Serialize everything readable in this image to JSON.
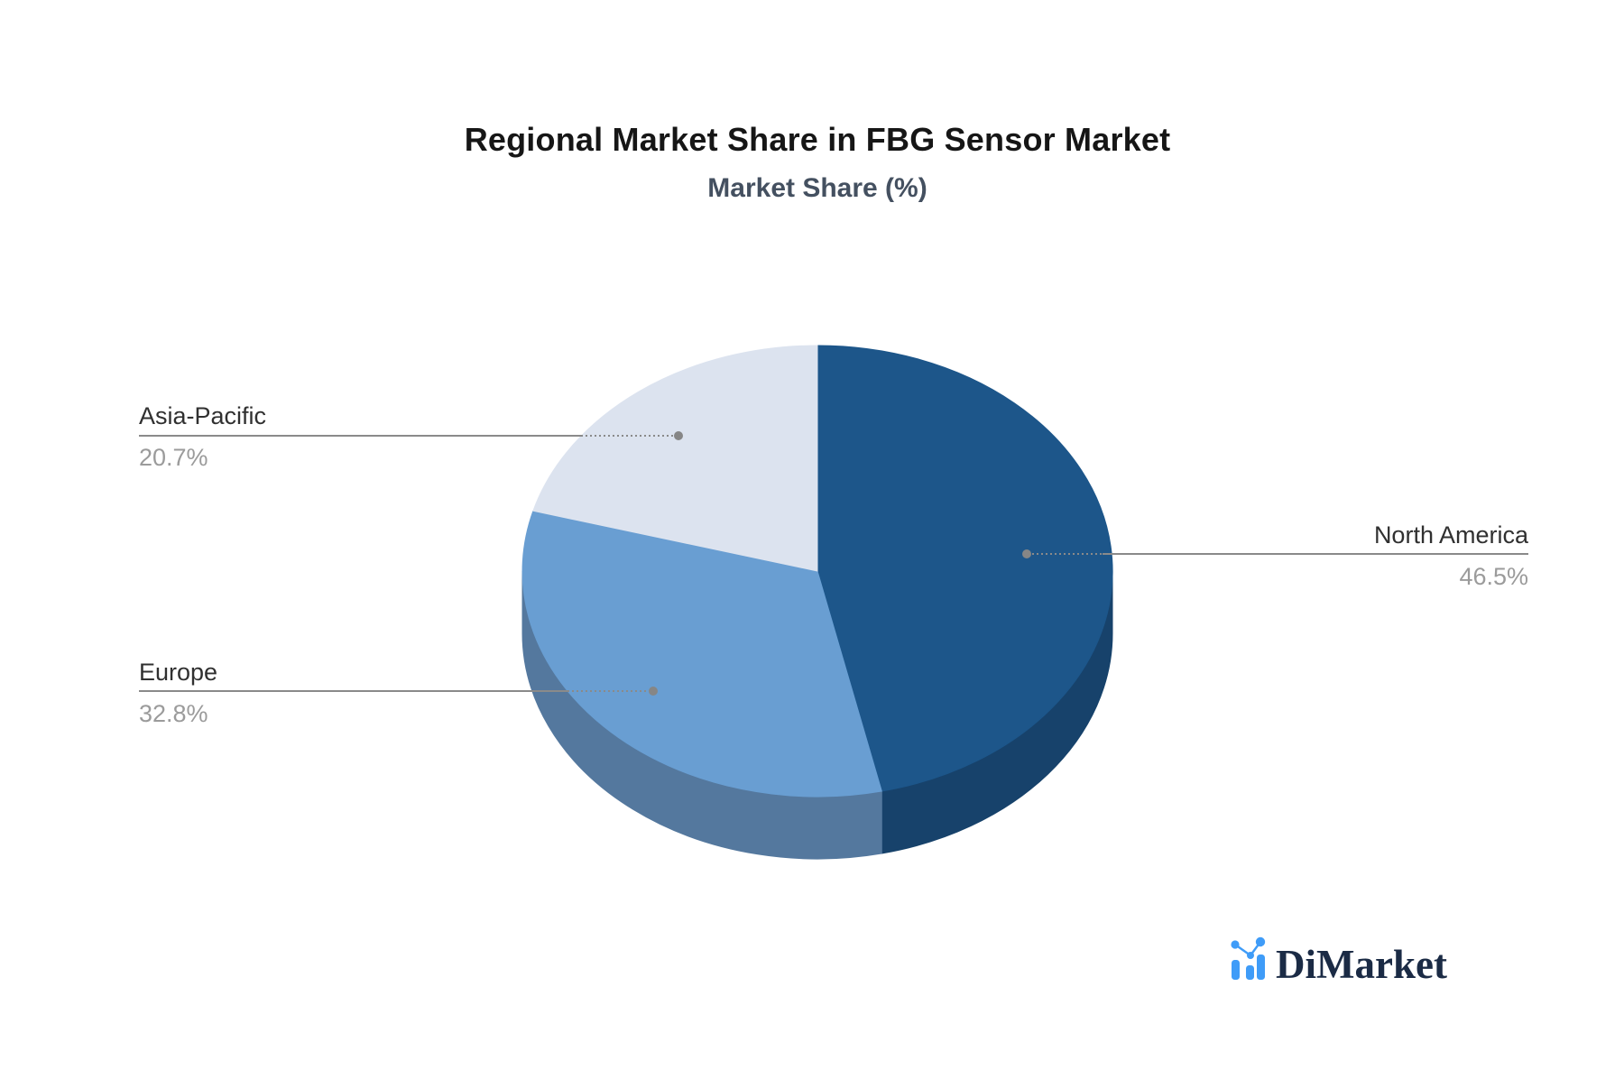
{
  "header": {
    "title": "Regional Market Share in FBG Sensor Market",
    "subtitle": "Market Share (%)"
  },
  "chart_data": {
    "type": "pie",
    "style": "3d",
    "title": "Regional Market Share in FBG Sensor Market",
    "subtitle": "Market Share (%)",
    "unit": "%",
    "start_angle_deg": 0,
    "direction": "clockwise",
    "legend_position": "none",
    "slices": [
      {
        "label": "North America",
        "value": 46.5,
        "display": "46.5%",
        "color": "#1D568A",
        "side_color": "#17426B"
      },
      {
        "label": "Europe",
        "value": 32.8,
        "display": "32.8%",
        "color": "#699ED2",
        "side_color": "#54789E"
      },
      {
        "label": "Asia-Pacific",
        "value": 20.7,
        "display": "20.7%",
        "color": "#DCE3EF",
        "side_color": "#B9C5D9"
      }
    ],
    "connector_color": "#8a8a8a",
    "label_color": "#303030",
    "percent_color": "#9b9b9b"
  },
  "branding": {
    "logo_text": "DiMarket",
    "logo_icon": "bar-chart-trend-icon",
    "logo_accent_color": "#3F9CF8",
    "logo_text_color": "#1b2b45"
  }
}
